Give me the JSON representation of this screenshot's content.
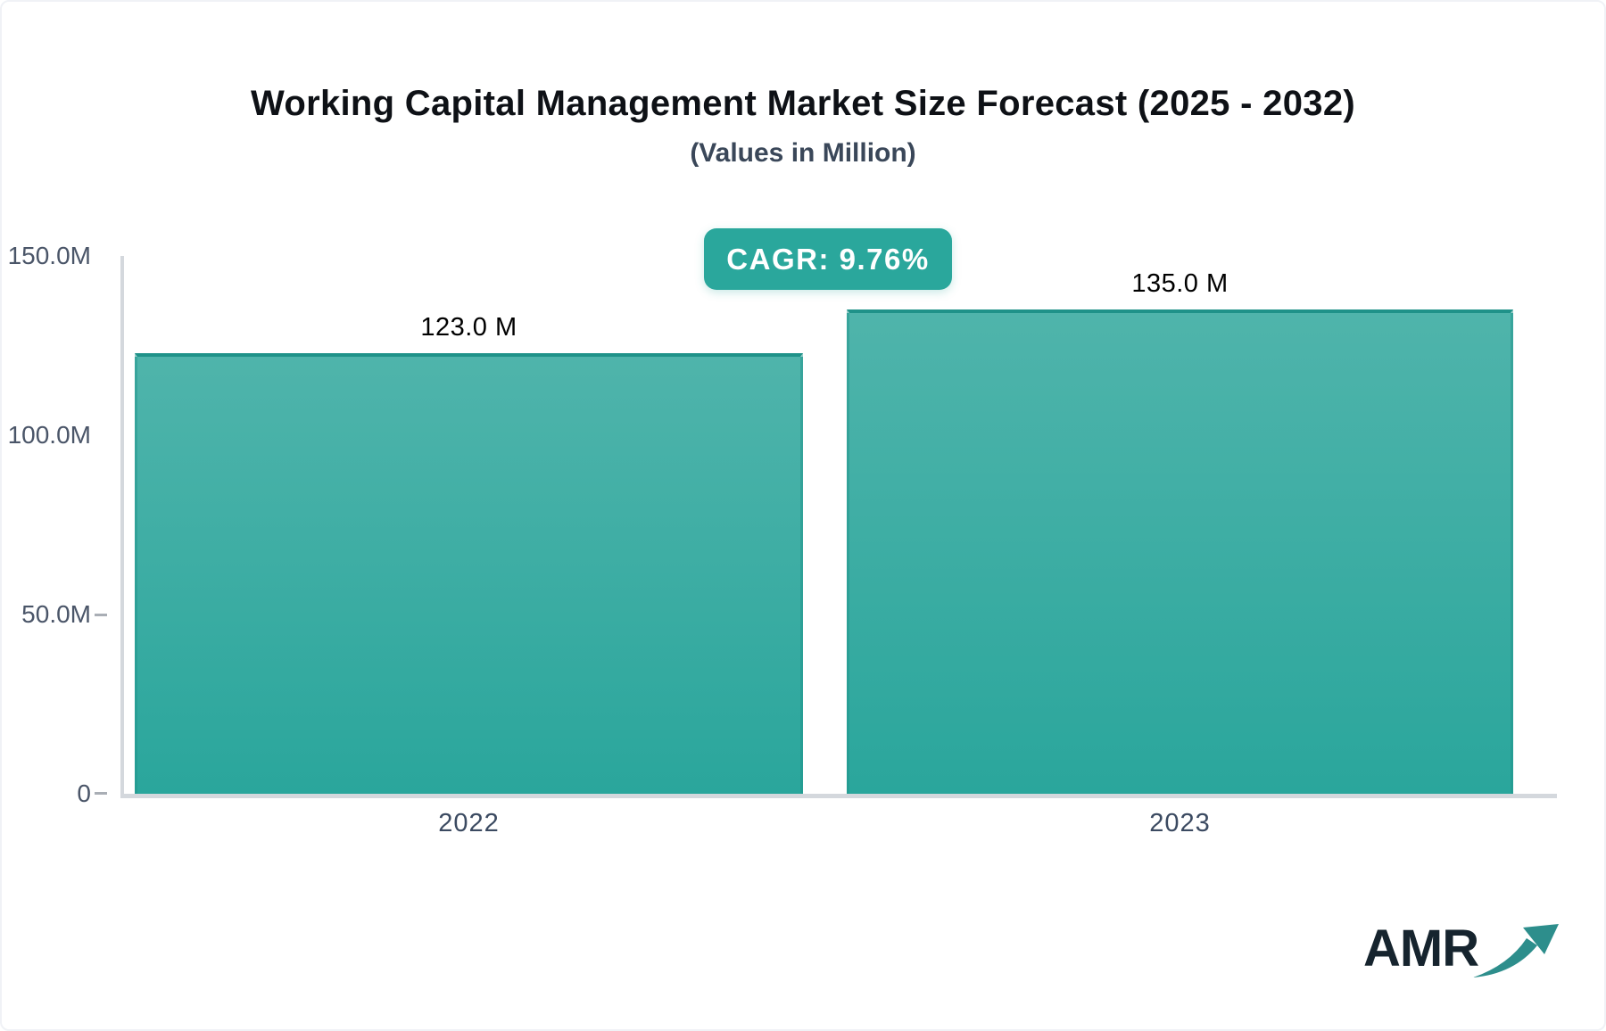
{
  "header": {
    "title": "Working Capital Management Market Size Forecast (2025 - 2032)",
    "subtitle": "(Values in Million)"
  },
  "cagr_badge": {
    "label": "CAGR: 9.76%"
  },
  "chart_data": {
    "type": "bar",
    "title": "Working Capital Management Market Size Forecast (2025 - 2032)",
    "subtitle": "(Values in Million)",
    "unit": "Million",
    "categories": [
      "2022",
      "2023"
    ],
    "values": [
      123.0,
      135.0
    ],
    "value_labels": [
      "123.0 M",
      "135.0 M"
    ],
    "cagr_percent": 9.76,
    "ylim": [
      0,
      150
    ],
    "ytick_labels": [
      "150.0M",
      "100.0M",
      "50.0M",
      "0"
    ],
    "grid": false,
    "legend": false,
    "colors": {
      "bar_gradient_top": "#4fb4ab",
      "bar_gradient_bottom": "#2aa69c",
      "bar_border": "#1f9289",
      "badge_background": "#2aa79c",
      "axis_line": "#d4d8dd",
      "tick_label": "#4a5568",
      "category_label": "#3b4a61",
      "value_label": "#000000"
    }
  },
  "logo": {
    "text": "AMR",
    "arrow_color": "#2d8e8c"
  }
}
